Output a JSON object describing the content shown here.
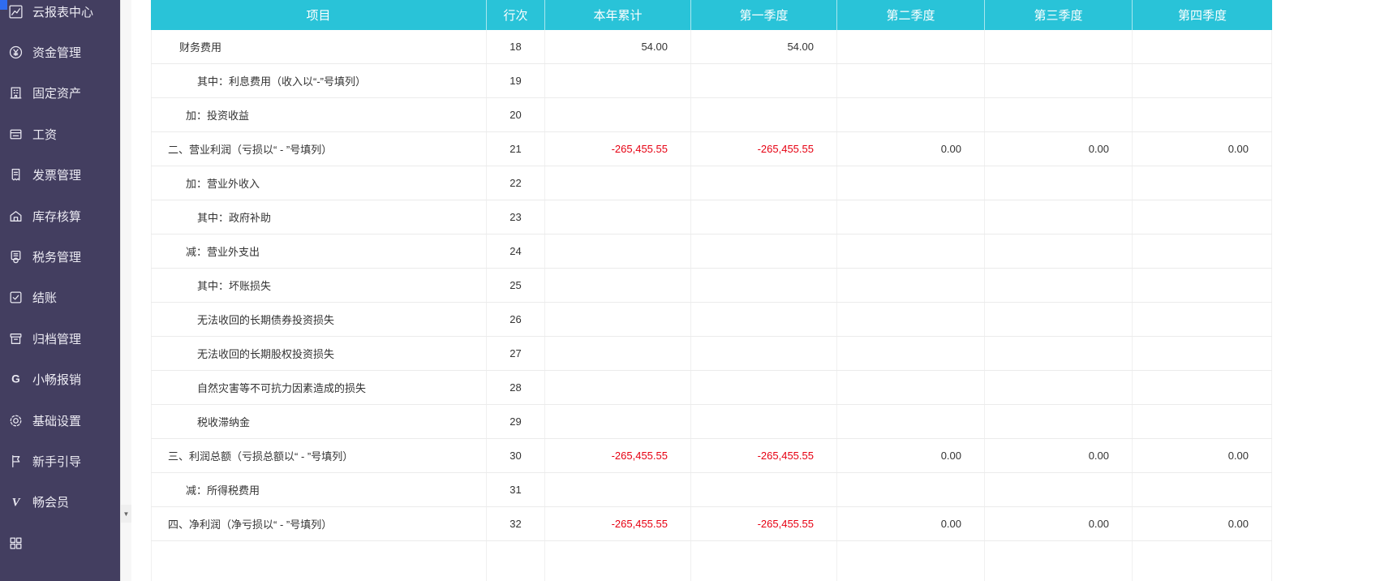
{
  "colors": {
    "sidebar_bg": "#433e60",
    "header_bg": "#29c3d8",
    "negative": "#e60012",
    "accent_blue": "#2f6cf0",
    "header_text": "#ffffff"
  },
  "sidebar": {
    "scroll_arrow": "▼",
    "items": [
      {
        "id": "cloud-report-center",
        "icon": "chart",
        "label": "云报表中心"
      },
      {
        "id": "funds-management",
        "icon": "funds",
        "label": "资金管理"
      },
      {
        "id": "fixed-assets",
        "icon": "building",
        "label": "固定资产"
      },
      {
        "id": "salary",
        "icon": "salary",
        "label": "工资"
      },
      {
        "id": "invoice-management",
        "icon": "invoice",
        "label": "发票管理"
      },
      {
        "id": "inventory-accounting",
        "icon": "inventory",
        "label": "库存核算"
      },
      {
        "id": "tax-management",
        "icon": "tax",
        "label": "税务管理"
      },
      {
        "id": "closing",
        "icon": "closing",
        "label": "结账"
      },
      {
        "id": "archive-management",
        "icon": "archive",
        "label": "归档管理"
      },
      {
        "id": "xiaochang-reimburse",
        "icon": "letter-g",
        "label": "小畅报销"
      },
      {
        "id": "basic-settings",
        "icon": "gear",
        "label": "基础设置"
      },
      {
        "id": "beginner-guide",
        "icon": "flag",
        "label": "新手引导"
      },
      {
        "id": "chang-member",
        "icon": "letter-v",
        "label": "畅会员"
      },
      {
        "id": "partial",
        "icon": "grid",
        "label": ""
      }
    ]
  },
  "table": {
    "columns": [
      "项目",
      "行次",
      "本年累计",
      "第一季度",
      "第二季度",
      "第三季度",
      "第四季度"
    ],
    "rows": [
      {
        "label": "财务费用",
        "indent": 1,
        "line": "18",
        "values": [
          "54.00",
          "54.00",
          "",
          "",
          ""
        ]
      },
      {
        "label": "其中：利息费用（收入以“-”号填列）",
        "indent": 3,
        "line": "19",
        "values": [
          "",
          "",
          "",
          "",
          ""
        ]
      },
      {
        "label": "加：投资收益",
        "indent": 2,
        "line": "20",
        "values": [
          "",
          "",
          "",
          "",
          ""
        ]
      },
      {
        "label": "二、营业利润（亏损以“ - ”号填列）",
        "indent": 0,
        "line": "21",
        "values": [
          "-265,455.55",
          "-265,455.55",
          "0.00",
          "0.00",
          "0.00"
        ]
      },
      {
        "label": "加：营业外收入",
        "indent": 2,
        "line": "22",
        "values": [
          "",
          "",
          "",
          "",
          ""
        ]
      },
      {
        "label": "其中：政府补助",
        "indent": 3,
        "line": "23",
        "values": [
          "",
          "",
          "",
          "",
          ""
        ]
      },
      {
        "label": "减：营业外支出",
        "indent": 2,
        "line": "24",
        "values": [
          "",
          "",
          "",
          "",
          ""
        ]
      },
      {
        "label": "其中：坏账损失",
        "indent": 3,
        "line": "25",
        "values": [
          "",
          "",
          "",
          "",
          ""
        ]
      },
      {
        "label": "无法收回的长期债券投资损失",
        "indent": 3,
        "line": "26",
        "values": [
          "",
          "",
          "",
          "",
          ""
        ]
      },
      {
        "label": "无法收回的长期股权投资损失",
        "indent": 3,
        "line": "27",
        "values": [
          "",
          "",
          "",
          "",
          ""
        ]
      },
      {
        "label": "自然灾害等不可抗力因素造成的损失",
        "indent": 3,
        "line": "28",
        "values": [
          "",
          "",
          "",
          "",
          ""
        ]
      },
      {
        "label": "税收滞纳金",
        "indent": 3,
        "line": "29",
        "values": [
          "",
          "",
          "",
          "",
          ""
        ]
      },
      {
        "label": "三、利润总额（亏损总额以“ - ”号填列）",
        "indent": 0,
        "line": "30",
        "values": [
          "-265,455.55",
          "-265,455.55",
          "0.00",
          "0.00",
          "0.00"
        ]
      },
      {
        "label": "减：所得税费用",
        "indent": 2,
        "line": "31",
        "values": [
          "",
          "",
          "",
          "",
          ""
        ]
      },
      {
        "label": "四、净利润（净亏损以“ - ”号填列）",
        "indent": 0,
        "line": "32",
        "values": [
          "-265,455.55",
          "-265,455.55",
          "0.00",
          "0.00",
          "0.00"
        ]
      }
    ]
  }
}
